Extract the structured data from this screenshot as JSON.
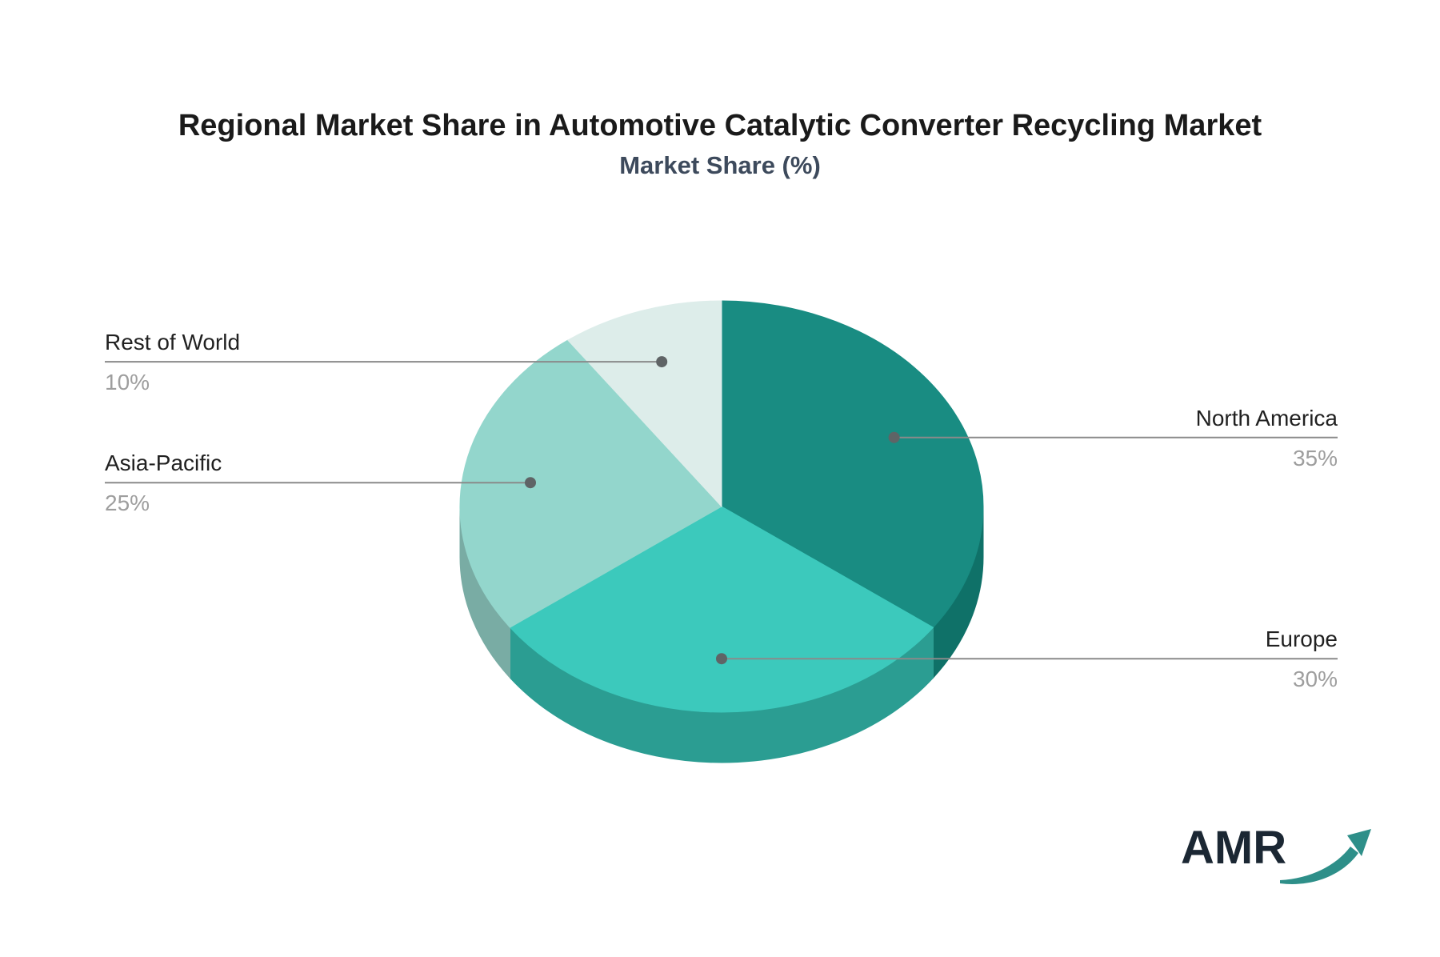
{
  "title": "Regional Market Share in Automotive Catalytic Converter Recycling Market",
  "subtitle": "Market Share (%)",
  "branding": {
    "logo_text": "AMR",
    "logo_text_color": "#1b2733",
    "logo_arrow_color": "#2e8f89"
  },
  "chart_data": {
    "type": "pie",
    "title": "Regional Market Share in Automotive Catalytic Converter Recycling Market",
    "subtitle": "Market Share (%)",
    "unit": "%",
    "style": "3d-pie-with-callout-labels",
    "categories": [
      "North America",
      "Europe",
      "Asia-Pacific",
      "Rest of World"
    ],
    "values": [
      35,
      30,
      25,
      10
    ],
    "slices": [
      {
        "label": "North America",
        "value": 35,
        "pct_label": "35%",
        "color": "#198c82",
        "side_color": "#0f7168",
        "label_side": "right"
      },
      {
        "label": "Europe",
        "value": 30,
        "pct_label": "30%",
        "color": "#3cc9bc",
        "side_color": "#2b9d92",
        "label_side": "right"
      },
      {
        "label": "Asia-Pacific",
        "value": 25,
        "pct_label": "25%",
        "color": "#93d6cc",
        "side_color": "#79aca4",
        "label_side": "left"
      },
      {
        "label": "Rest of World",
        "value": 10,
        "pct_label": "10%",
        "color": "#ddedea",
        "side_color": "#bcd8d2",
        "label_side": "left"
      }
    ],
    "colors": {
      "leader_line": "#8a8a8a",
      "dot": "#5f6466",
      "label_text": "#212121",
      "pct_text": "#9e9e9e",
      "title_text": "#1a1a1a",
      "subtitle_text": "#3d4a5c"
    }
  }
}
